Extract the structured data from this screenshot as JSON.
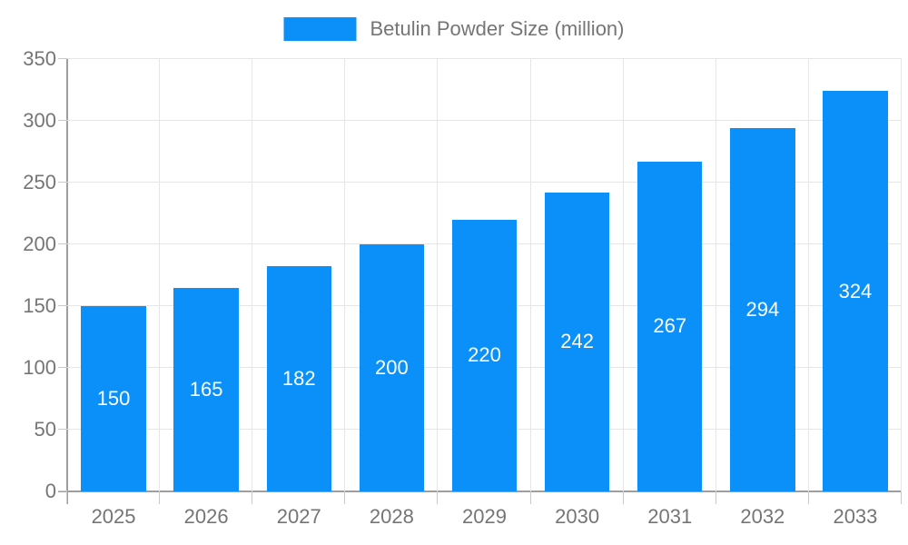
{
  "legend": {
    "label": "Betulin Powder Size (million)"
  },
  "chart_data": {
    "type": "bar",
    "title": "Betulin Powder Size (million)",
    "series_name": "Betulin Powder Size (million)",
    "categories": [
      "2025",
      "2026",
      "2027",
      "2028",
      "2029",
      "2030",
      "2031",
      "2032",
      "2033"
    ],
    "values": [
      150,
      165,
      182,
      200,
      220,
      242,
      267,
      294,
      324
    ],
    "xlabel": "",
    "ylabel": "",
    "ylim": [
      0,
      350
    ],
    "yticks": [
      0,
      50,
      100,
      150,
      200,
      250,
      300,
      350
    ],
    "grid": true,
    "legend_position": "top-center",
    "bar_labels_inside": true,
    "colors": {
      "bar": "#0a90f8",
      "bar_label": "#ffffff",
      "axis_text": "#757575",
      "grid_line": "#e6e6e6",
      "axis_line": "#9e9e9e",
      "tick_line": "#c9c9c9",
      "background": "#ffffff"
    }
  }
}
